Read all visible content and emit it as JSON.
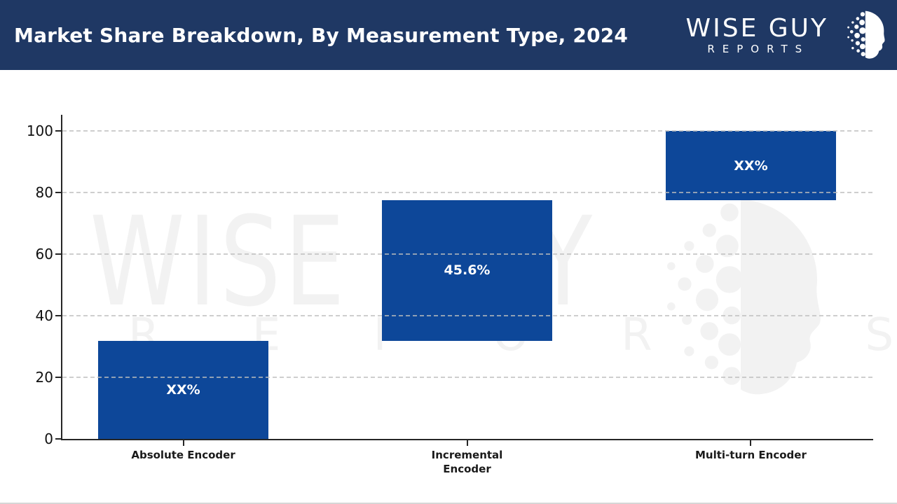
{
  "header": {
    "title": "Market Share Breakdown, By Measurement Type, 2024",
    "bg_color": "#1f3864",
    "logo": {
      "line1": "WISE GUY",
      "line2": "REPORTS"
    }
  },
  "watermark": {
    "line1": "WISE GUY",
    "line2": "R E P O R T S"
  },
  "chart_data": {
    "type": "bar",
    "subtype": "waterfall-stacked-percentage",
    "title": "Market Share Breakdown, By Measurement Type, 2024",
    "categories": [
      "Absolute Encoder",
      "Incremental\nEncoder",
      "Multi-turn Encoder"
    ],
    "segments": [
      {
        "category": "Absolute Encoder",
        "start": 0,
        "end": 31.9,
        "value_label": "XX%",
        "value_estimate": 31.9
      },
      {
        "category": "Incremental Encoder",
        "start": 31.9,
        "end": 77.5,
        "value_label": "45.6%",
        "value_estimate": 45.6
      },
      {
        "category": "Multi-turn Encoder",
        "start": 77.5,
        "end": 100,
        "value_label": "XX%",
        "value_estimate": 22.5
      }
    ],
    "ylim": [
      0,
      100
    ],
    "yticks": [
      0,
      20,
      40,
      60,
      80,
      100
    ],
    "xlabel": "",
    "ylabel": "",
    "legend": null,
    "grid": "horizontal-dashed",
    "bar_color": "#0d4799",
    "bar_label_color": "#ffffff"
  }
}
